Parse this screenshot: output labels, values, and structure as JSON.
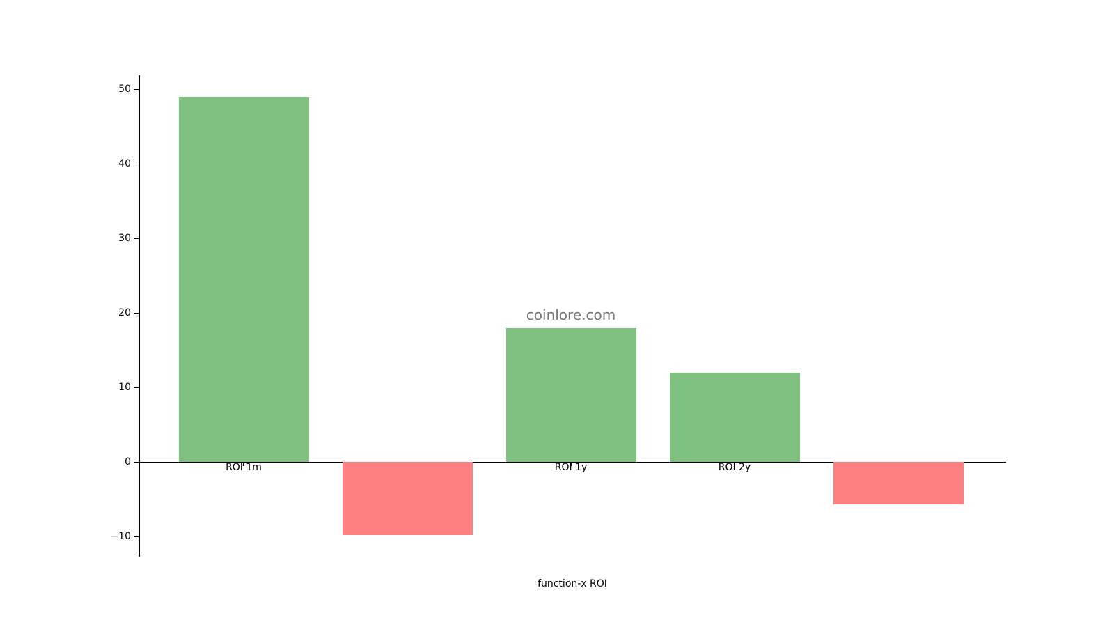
{
  "chart_data": {
    "type": "bar",
    "title": "",
    "xlabel": "function-x ROI",
    "ylabel": "",
    "watermark": "coinlore.com",
    "categories": [
      "ROI 1m",
      "",
      "ROI 1y",
      "ROI 2y",
      ""
    ],
    "values": [
      49,
      -9.8,
      18,
      12,
      -5.7
    ],
    "y_ticks": [
      50,
      40,
      30,
      20,
      10,
      0,
      -10
    ],
    "y_tick_labels": [
      "50",
      "40",
      "30",
      "20",
      "10",
      "0",
      "−10"
    ],
    "ylim": [
      -12.7,
      51.9
    ],
    "positive_color": "#7fbf7f",
    "negative_color": "#ff8080",
    "axis_color": "#000000",
    "watermark_color": "#777777",
    "text_color": "#000000",
    "grid": "off",
    "legend": "off"
  }
}
